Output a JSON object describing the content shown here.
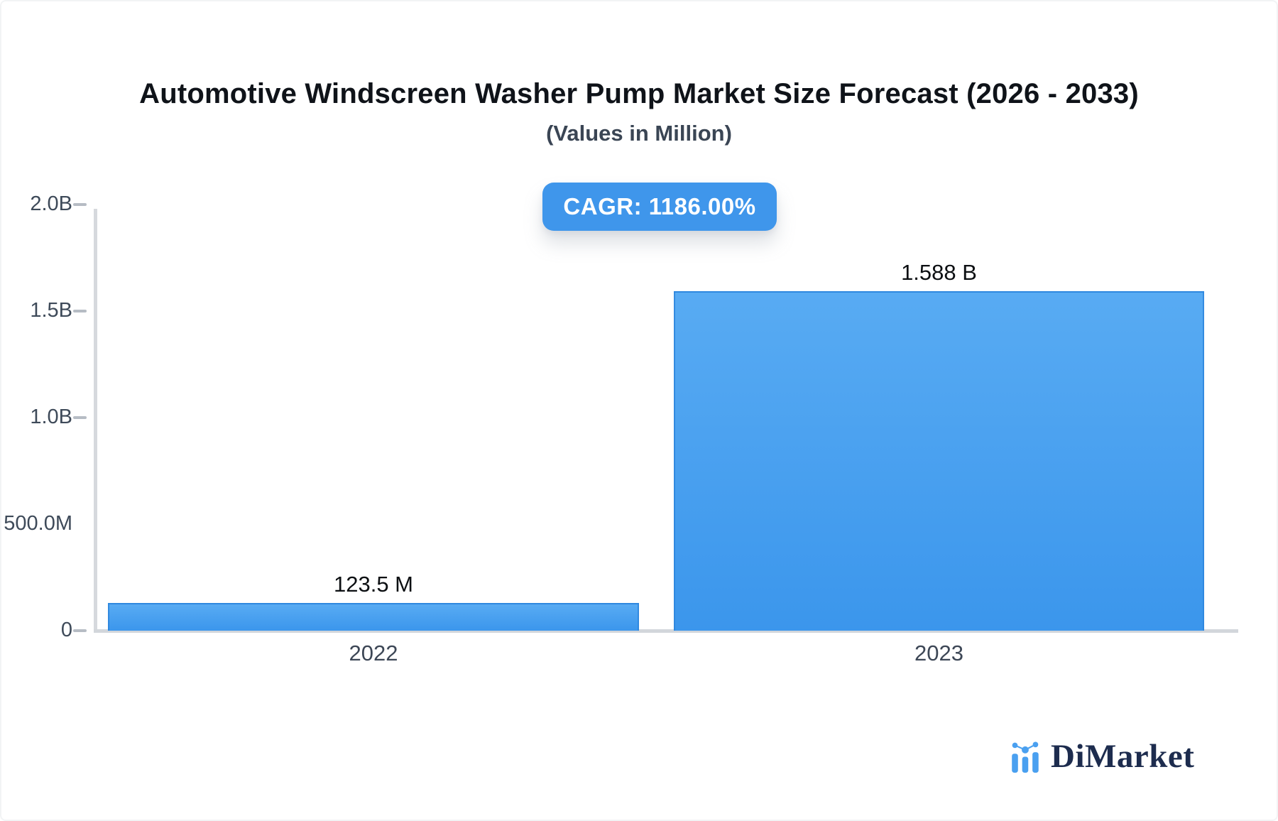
{
  "header": {
    "title": "Automotive Windscreen Washer Pump Market Size Forecast (2026 - 2033)",
    "subtitle": "(Values in Million)"
  },
  "badge": {
    "label": "CAGR: 1186.00%",
    "color": "#3f96eb"
  },
  "logo": {
    "text": "DiMarket",
    "icon": "mini-bar-chart-icon",
    "text_color": "#1d2c4e",
    "icon_color": "#4aa0f0"
  },
  "colors": {
    "bar_top": "#58abf3",
    "bar_bottom": "#3b96ec",
    "bar_border": "#2e86dd",
    "axis": "#d4d7db",
    "tick_dash": "#b6bcc4",
    "label_slate": "#3e4a59",
    "value_text": "#0c0f12"
  },
  "chart_data": {
    "type": "bar",
    "title": "Automotive Windscreen Washer Pump Market Size Forecast (2026 - 2033)",
    "subtitle": "(Values in Million)",
    "categories": [
      "2022",
      "2023"
    ],
    "values_millions": [
      123.5,
      1588
    ],
    "bar_labels": [
      "123.5 M",
      "1.588 B"
    ],
    "xlabel": "",
    "ylabel": "",
    "ylim_millions": [
      0,
      2000
    ],
    "grid": false,
    "legend": false,
    "y_ticks": [
      {
        "label": "2.0B",
        "value_millions": 2000,
        "dash": true
      },
      {
        "label": "1.5B",
        "value_millions": 1500,
        "dash": true
      },
      {
        "label": "1.0B",
        "value_millions": 1000,
        "dash": true
      },
      {
        "label": "500.0M",
        "value_millions": 500,
        "dash": false
      },
      {
        "label": "0",
        "value_millions": 0,
        "dash": true
      }
    ]
  }
}
